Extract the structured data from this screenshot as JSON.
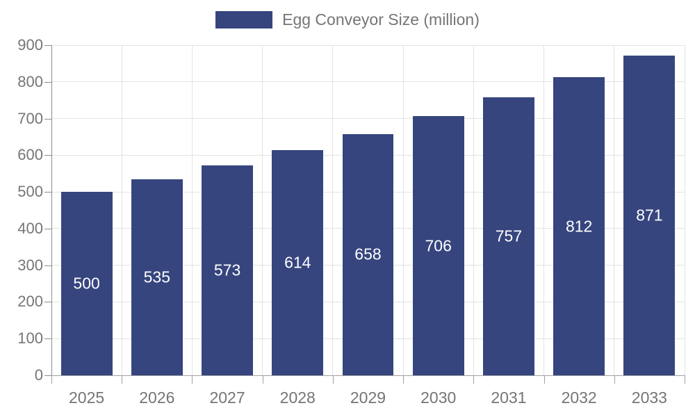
{
  "chart_data": {
    "type": "bar",
    "title": "Egg Conveyor Size (million)",
    "series_name": "Egg Conveyor Size (million)",
    "categories": [
      "2025",
      "2026",
      "2027",
      "2028",
      "2029",
      "2030",
      "2031",
      "2032",
      "2033"
    ],
    "values": [
      500,
      535,
      573,
      614,
      658,
      706,
      757,
      812,
      871
    ],
    "xlabel": "",
    "ylabel": "",
    "ylim": [
      0,
      900
    ],
    "ytick_step": 100,
    "grid": true,
    "legend_position": "top",
    "bar_color": "#36457e",
    "value_label_color": "#ffffff",
    "axis_text_color": "#757575",
    "gridline_color": "#e3e3e3"
  }
}
